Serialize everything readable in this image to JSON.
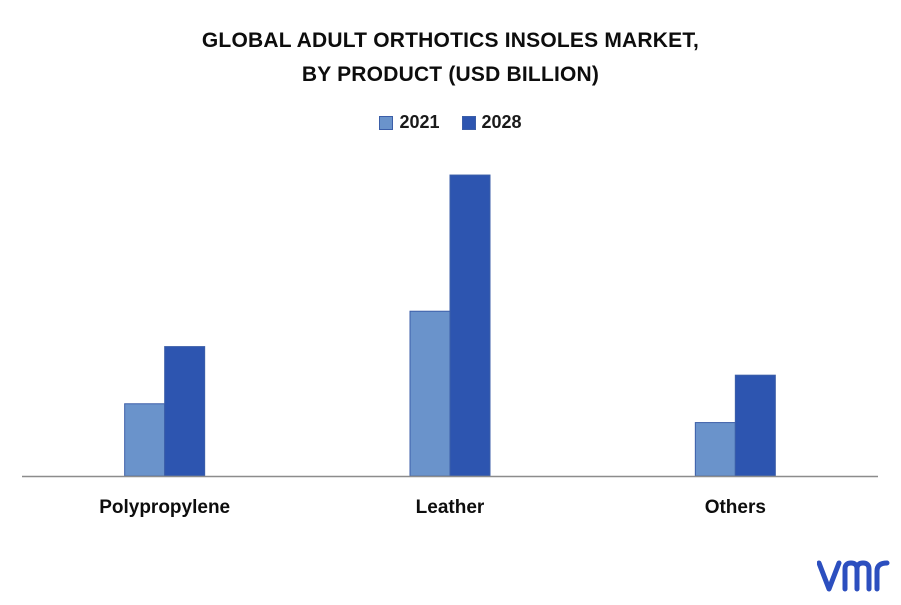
{
  "title_lines": [
    "GLOBAL ADULT ORTHOTICS INSOLES MARKET,",
    "BY PRODUCT (USD BILLION)"
  ],
  "logo_text": "vmr",
  "colors": {
    "series_2021": "#6a93cb",
    "series_2028": "#2d55b0",
    "axis": "#8c8c8c",
    "logo": "#2c4fbf"
  },
  "chart_data": {
    "type": "bar",
    "title": "GLOBAL ADULT ORTHOTICS INSOLES MARKET, BY PRODUCT (USD BILLION)",
    "categories": [
      "Polypropylene",
      "Leather",
      "Others"
    ],
    "series": [
      {
        "name": "2021",
        "values": [
          0.96,
          2.19,
          0.71
        ]
      },
      {
        "name": "2028",
        "values": [
          1.72,
          4.0,
          1.34
        ]
      }
    ],
    "xlabel": "",
    "ylabel": "",
    "ylim": [
      0,
      4.2
    ],
    "grid": false,
    "legend_position": "top-center"
  }
}
